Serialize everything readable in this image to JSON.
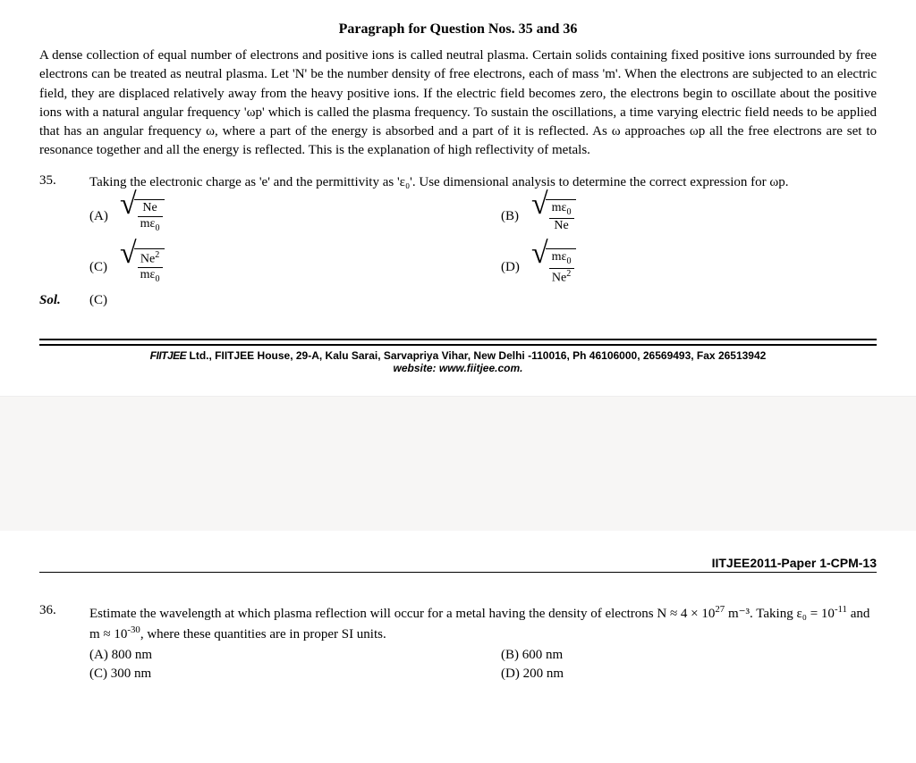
{
  "heading": "Paragraph for Question Nos. 35 and 36",
  "passage": "A dense collection of equal number of electrons and positive ions is called neutral plasma.  Certain solids containing fixed positive ions surrounded by free electrons can be treated as neutral plasma.  Let 'N' be the number density of free electrons, each of mass 'm'.  When the electrons are subjected to an electric field, they are displaced relatively away from the heavy positive ions.  If the electric field becomes zero, the electrons begin to oscillate about the positive ions with a natural angular frequency 'ωp' which is called the plasma frequency.  To sustain the oscillations, a time varying electric field needs to be applied that has an angular frequency ω, where a part of the energy is absorbed and a part of it is reflected.  As ω approaches ωp all the free electrons are set to resonance together and all the energy is reflected.  This is the explanation of high reflectivity of metals.",
  "q35": {
    "num": "35.",
    "text": "Taking the electronic charge as 'e' and the permittivity as 'ε₀'. Use dimensional analysis to determine the correct expression for ωp.",
    "options": {
      "A": {
        "label": "(A)",
        "num": "Ne",
        "den": "mε₀"
      },
      "B": {
        "label": "(B)",
        "num": "mε₀",
        "den": "Ne"
      },
      "C": {
        "label": "(C)",
        "num": "Ne²",
        "den": "mε₀"
      },
      "D": {
        "label": "(D)",
        "num": "mε₀",
        "den": "Ne²"
      }
    },
    "sol_label": "Sol.",
    "sol_ans": "(C)"
  },
  "footer": {
    "brand": "FIITJEE",
    "address": " Ltd., FIITJEE House, 29-A, Kalu Sarai, Sarvapriya Vihar, New Delhi -110016, Ph 46106000, 26569493, Fax 26513942",
    "website_label": "website: ",
    "website": "www.fiitjee.com."
  },
  "page2header": "IITJEE2011-Paper 1-CPM-13",
  "q36": {
    "num": "36.",
    "text_pre": "Estimate the wavelength at which plasma reflection will occur for a metal having the density of electrons N ≈ 4 × 10",
    "exp1": "27",
    "text_mid": " m⁻³.  Taking ε₀ = 10",
    "exp2": "-11",
    "text_mid2": " and m ≈ 10",
    "exp3": "-30",
    "text_post": ", where these quantities are in proper SI units.",
    "options": {
      "A": {
        "label": "(A)",
        "val": "800 nm"
      },
      "B": {
        "label": "(B)",
        "val": "600 nm"
      },
      "C": {
        "label": "(C)",
        "val": "300 nm"
      },
      "D": {
        "label": "(D)",
        "val": "200 nm"
      }
    }
  }
}
